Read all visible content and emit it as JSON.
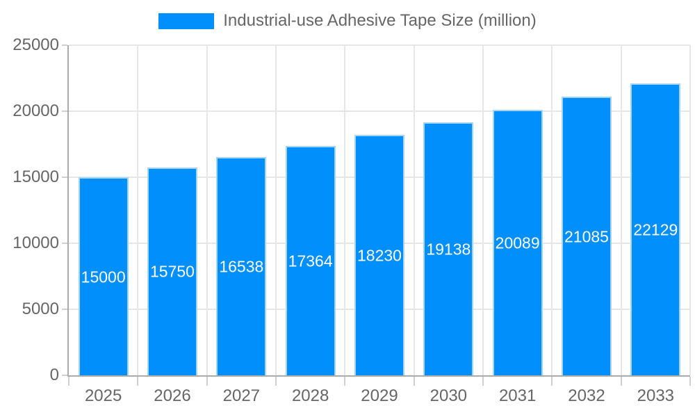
{
  "chart_data": {
    "type": "bar",
    "title": "Industrial-use Adhesive Tape Size (million)",
    "categories": [
      "2025",
      "2026",
      "2027",
      "2028",
      "2029",
      "2030",
      "2031",
      "2032",
      "2033"
    ],
    "series": [
      {
        "name": "Industrial-use Adhesive Tape Size (million)",
        "values": [
          15000,
          15750,
          16538,
          17364,
          18230,
          19138,
          20089,
          21085,
          22129
        ]
      }
    ],
    "values": [
      15000,
      15750,
      16538,
      17364,
      18230,
      19138,
      20089,
      21085,
      22129
    ],
    "value_labels_inside_bars": true,
    "xlabel": "",
    "ylabel": "",
    "ylim": [
      0,
      25000
    ],
    "y_ticks": [
      0,
      5000,
      10000,
      15000,
      20000,
      25000
    ],
    "grid": true,
    "legend_position": "top"
  },
  "colors": {
    "bar_fill": "#008FFB",
    "bar_border": "#a6d5fc",
    "grid_line": "#e6e6e6",
    "axis_line": "#ababab",
    "tick_mark": "#cfcfcf",
    "tick_label": "#666666",
    "legend_text": "#666666",
    "value_label": "#ffffff",
    "background": "#ffffff"
  }
}
